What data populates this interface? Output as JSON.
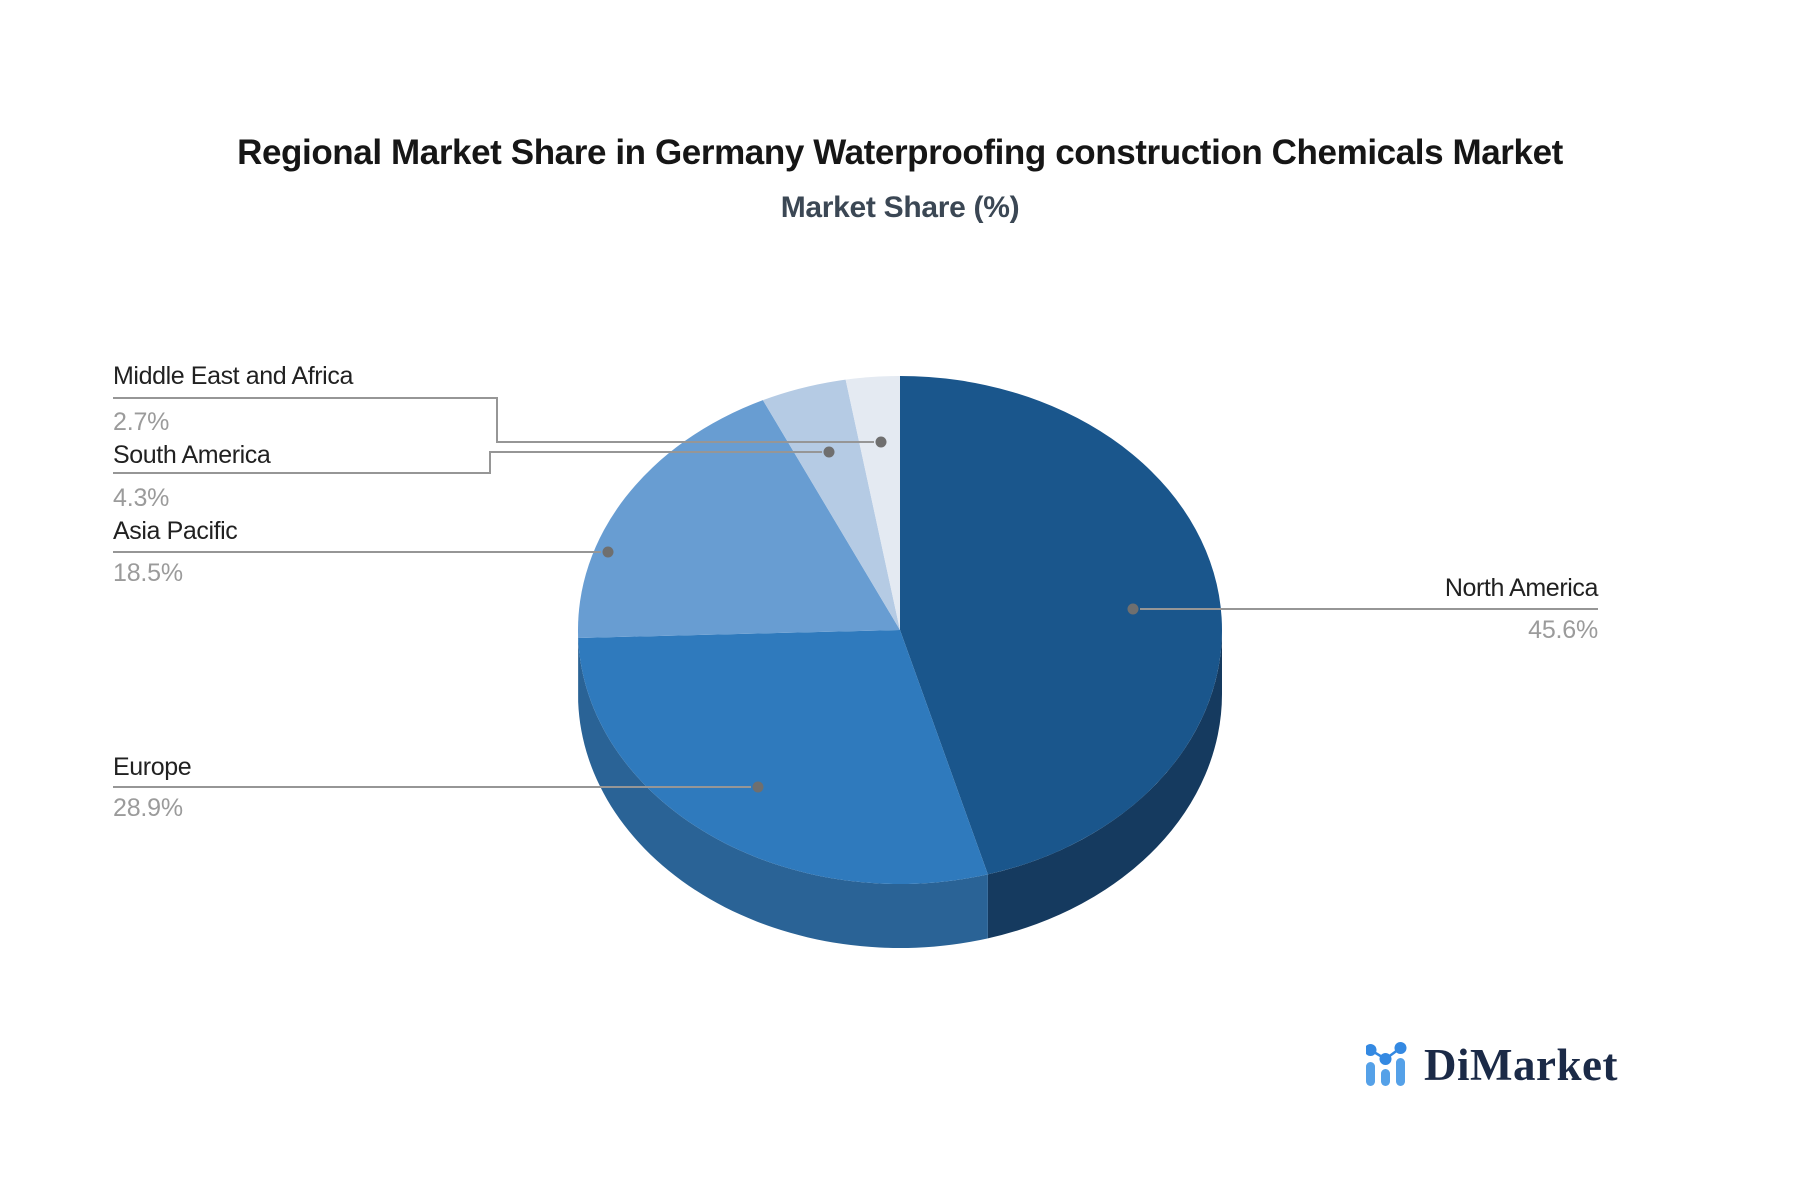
{
  "title": "Regional Market Share in Germany Waterproofing construction Chemicals Market",
  "subtitle": "Market Share (%)",
  "chart_data": {
    "type": "pie",
    "style": "3d",
    "unit": "%",
    "direction": "clockwise",
    "start_angle": "12-o-clock",
    "legend": "none",
    "label_layout": "callout-leader-lines",
    "slices": [
      {
        "label": "North America",
        "value": 45.6,
        "display_value": "45.6%",
        "color": "#1a568c",
        "side_color": "#153a5f"
      },
      {
        "label": "Europe",
        "value": 28.9,
        "display_value": "28.9%",
        "color": "#2f7abd",
        "side_color": "#2a6396"
      },
      {
        "label": "Asia Pacific",
        "value": 18.5,
        "display_value": "18.5%",
        "color": "#689dd2",
        "side_color": "#54799e"
      },
      {
        "label": "South America",
        "value": 4.3,
        "display_value": "4.3%",
        "color": "#b5cbe4",
        "side_color": "#8fa5bd"
      },
      {
        "label": "Middle East and Africa",
        "value": 2.7,
        "display_value": "2.7%",
        "color": "#e4eaf2",
        "side_color": "#b8c1cc"
      }
    ]
  },
  "leader_style": {
    "line_color": "#969696",
    "dot_color": "#6f6f6f"
  },
  "watermark": {
    "text": "DiMarket",
    "icon_bar_color": "#55a1e8",
    "icon_dot_color": "#3489e2",
    "text_color": "#1b2a47"
  }
}
